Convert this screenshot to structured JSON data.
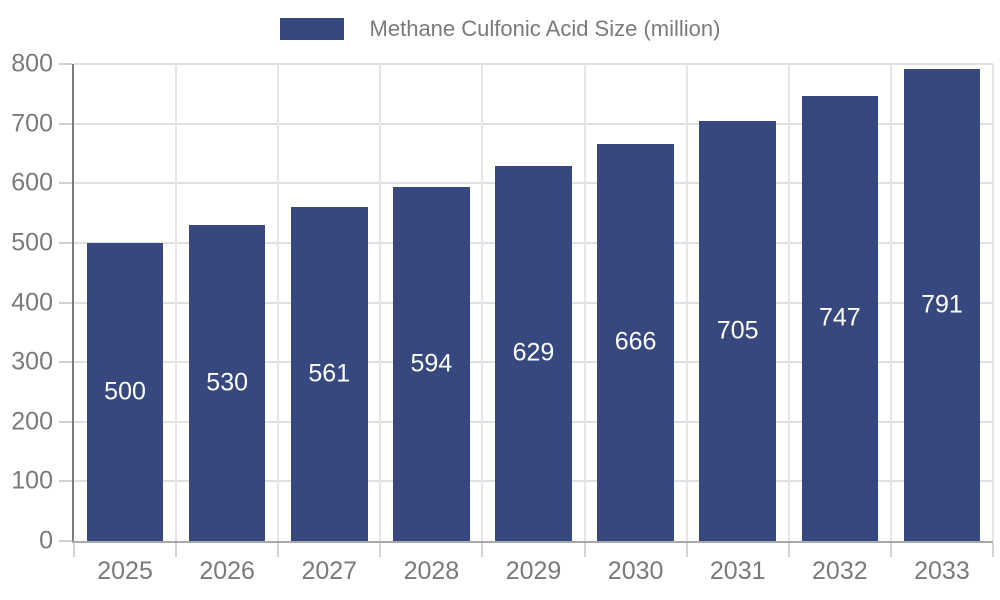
{
  "chart_data": {
    "type": "bar",
    "title": "Methane Culfonic Acid Size (million)",
    "legend": {
      "label": "Methane Culfonic Acid Size (million)",
      "position": "top-center"
    },
    "categories": [
      "2025",
      "2026",
      "2027",
      "2028",
      "2029",
      "2030",
      "2031",
      "2032",
      "2033"
    ],
    "values": [
      500,
      530,
      561,
      594,
      629,
      666,
      705,
      747,
      791
    ],
    "bar_value_labels": [
      "500",
      "530",
      "561",
      "594",
      "629",
      "666",
      "705",
      "747",
      "791"
    ],
    "xlabel": "",
    "ylabel": "",
    "ylim": [
      0,
      800
    ],
    "yticks": [
      0,
      100,
      200,
      300,
      400,
      500,
      600,
      700,
      800
    ],
    "grid": true,
    "legend_position": "top-center",
    "colors": {
      "bar": "#36487e",
      "bar_label_text": "#ffffff",
      "axis_text": "#7a7a7a",
      "y_axis_line": "#7c7c7c",
      "x_axis_line": "#a9a9a9",
      "gridline": "#e0e0e0",
      "background": "#ffffff"
    }
  }
}
